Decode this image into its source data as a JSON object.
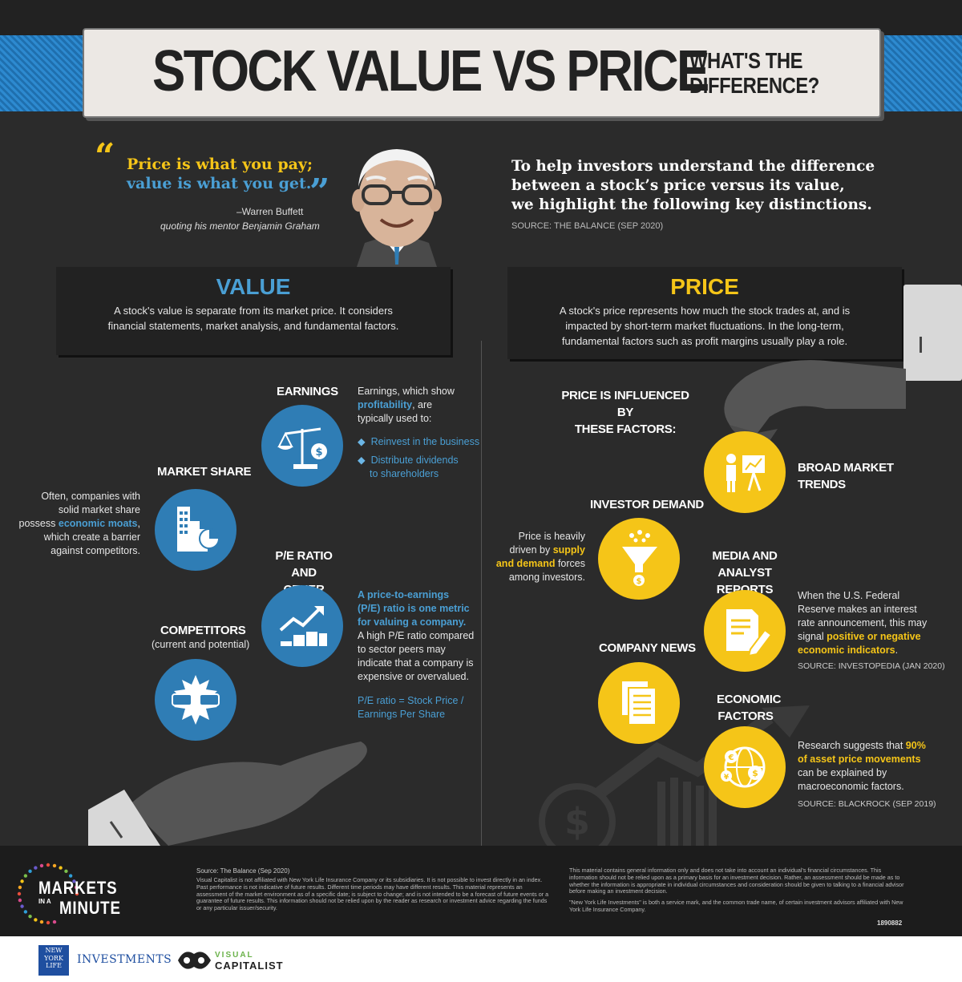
{
  "header": {
    "title": "STOCK VALUE VS PRICE",
    "subtitle": "WHAT'S THE DIFFERENCE?"
  },
  "quote": {
    "text_line1": "Price is what you pay;",
    "text_line2": "value is what you get.",
    "author": "–Warren Buffett",
    "note": "quoting his mentor Benjamin Graham"
  },
  "intro": {
    "line1": "To help investors understand the difference",
    "line2": "between a stock’s price versus its value,",
    "line3": "we highlight the following key distinctions.",
    "source": "SOURCE: THE BALANCE (SEP 2020)"
  },
  "value": {
    "title": "VALUE",
    "desc_line1": "A stock's value is separate from its market price. It considers",
    "desc_line2": "financial statements, market analysis, and fundamental factors.",
    "earnings": {
      "title": "EARNINGS",
      "desc_a": "Earnings, which show",
      "desc_hl": "profitability",
      "desc_b": ", are",
      "desc_c": "typically used to:",
      "bullet1": "Reinvest in the business",
      "bullet2a": "Distribute dividends",
      "bullet2b": "to shareholders"
    },
    "market_share": {
      "title": "MARKET SHARE",
      "l1": "Often, companies with",
      "l2": "solid market share",
      "l3a": "possess ",
      "l3hl": "economic moats",
      "l3b": ",",
      "l4": "which create a barrier",
      "l5": "against competitors."
    },
    "pe": {
      "title1": "P/E RATIO AND",
      "title2": "OTHER METRICS",
      "hl1": "A price-to-earnings",
      "hl2": "(P/E) ratio is one metric",
      "hl3": "for valuing a company.",
      "l1": "A high P/E ratio compared",
      "l2": "to sector peers may",
      "l3": "indicate that a company is",
      "l4": "expensive or overvalued.",
      "f1": "P/E ratio = Stock Price /",
      "f2": "Earnings Per Share"
    },
    "competitors": {
      "title": "COMPETITORS",
      "sub": "(current and potential)"
    }
  },
  "price": {
    "title": "PRICE",
    "desc_line1": "A stock's price represents how much the stock trades at, and is",
    "desc_line2": "impacted by short-term market fluctuations. In the long-term,",
    "desc_line3": "fundamental factors such as profit margins usually play a role.",
    "influenced1": "PRICE IS INFLUENCED BY",
    "influenced2": "THESE FACTORS:",
    "broad": {
      "title1": "BROAD MARKET",
      "title2": "TRENDS"
    },
    "demand": {
      "title": "INVESTOR DEMAND",
      "l1": "Price is heavily",
      "l2a": "driven by ",
      "l2hl": "supply",
      "l3hl": "and demand",
      "l3b": " forces",
      "l4": "among investors."
    },
    "media": {
      "title1": "MEDIA AND",
      "title2": "ANALYST REPORTS",
      "l1": "When the U.S. Federal",
      "l2": "Reserve makes an interest",
      "l3": "rate announcement, this may",
      "l4a": "signal ",
      "l4hl": "positive or negative",
      "l5hl": "economic indicators",
      "l5b": ".",
      "source": "SOURCE: INVESTOPEDIA (JAN 2020)"
    },
    "news": {
      "title": "COMPANY NEWS"
    },
    "econ": {
      "title1": "ECONOMIC",
      "title2": "FACTORS",
      "l1a": "Research suggests that ",
      "l1hl": "90%",
      "l2hl": "of asset price movements",
      "l3": "can be explained by",
      "l4": "macroeconomic factors.",
      "source": "SOURCE: BLACKROCK (SEP 2019)"
    }
  },
  "footer": {
    "brand1": "MARKETS",
    "brand2a": "IN A",
    "brand2b": "MINUTE",
    "source": "Source: The Balance (Sep 2020)",
    "disc1": "Visual Capitalist is not affiliated with New York Life Insurance Company or its subsidiaries. It is not possible to invest directly in an index. Past performance is not indicative of future results. Different time periods may have different results. This material represents an assessment of the market environment as of a specific date; is subject to change; and is not intended to be a forecast of future events or a guarantee of future results. This information should not be relied upon by the reader as research or investment advice regarding the funds or any particular issuer/security.",
    "disc2": "This material contains general information only and does not take into account an individual's financial circumstances. This information should not be relied upon as a primary basis for an investment decision. Rather, an assessment should be made as to whether the information is appropriate in individual circumstances and consideration should be given to talking to a financial advisor before making an investment decision.",
    "disc3": "\"New York Life Investments\" is both a service mark, and the common trade name, of certain investment advisors affiliated with New York Life Insurance Company.",
    "code": "1890882"
  },
  "logos": {
    "nyl1": "NEW",
    "nyl2": "YORK",
    "nyl3": "LIFE",
    "investments": "INVESTMENTS",
    "vc1": "VISUAL",
    "vc2": "CAPITALIST"
  },
  "colors": {
    "bg": "#2b2b2b",
    "blue": "#2f7db5",
    "yellow": "#f5c518"
  }
}
